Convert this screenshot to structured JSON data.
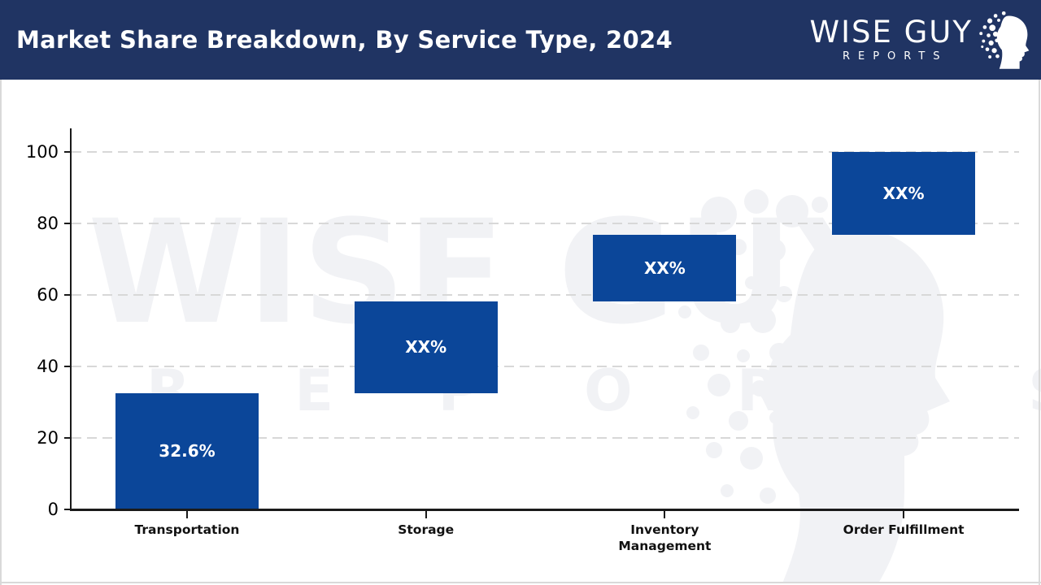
{
  "header": {
    "title": "Market Share Breakdown, By Service Type, 2024",
    "logo": {
      "line1": "WISE GUY",
      "line2": "REPORTS"
    }
  },
  "watermark": {
    "line1": "WISE GUY",
    "line2": "R E P O R T S"
  },
  "colors": {
    "header_bg": "#203463",
    "bar": "#0B4699",
    "grid": "#d8d8d8",
    "axis": "#1a1a1a",
    "bar_label": "#ffffff",
    "tick_label": "#000000",
    "watermark": "#f1f2f5"
  },
  "chart_data": {
    "type": "bar",
    "subtype": "waterfall",
    "title": "Market Share Breakdown, By Service Type, 2024",
    "xlabel": "",
    "ylabel": "",
    "categories": [
      "Transportation",
      "Storage",
      "Inventory Management",
      "Order Fulfillment"
    ],
    "segments": [
      {
        "category": "Transportation",
        "start": 0,
        "end": 32.6,
        "label": "32.6%"
      },
      {
        "category": "Storage",
        "start": 32.6,
        "end": 58.2,
        "label": "XX%"
      },
      {
        "category": "Inventory Management",
        "start": 58.2,
        "end": 76.8,
        "label": "XX%"
      },
      {
        "category": "Order Fulfillment",
        "start": 76.8,
        "end": 100,
        "label": "XX%"
      }
    ],
    "yticks": [
      0,
      20,
      40,
      60,
      80,
      100
    ],
    "ylim": [
      0,
      100
    ],
    "grid": "horizontal dashed",
    "legend": "none"
  }
}
